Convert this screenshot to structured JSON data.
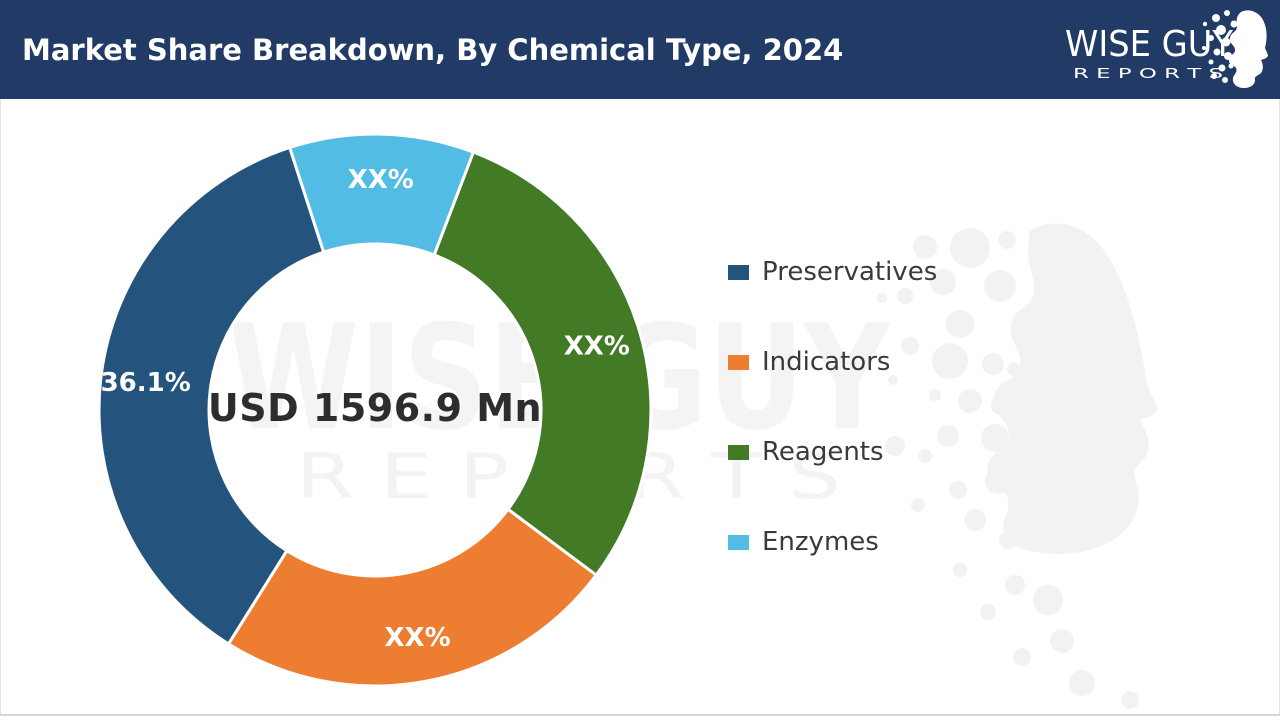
{
  "header": {
    "title": "Market Share Breakdown, By Chemical Type, 2024",
    "logo": {
      "brand": "WISE GUY",
      "tagline": "R E P O R T S"
    }
  },
  "watermark": {
    "line1": "WISE GUY",
    "line2": "R E P O R T S"
  },
  "chart_data": {
    "type": "pie",
    "subtype": "donut",
    "title": "Market Share Breakdown, By Chemical Type, 2024",
    "center_label": "USD 1596.9 Mn",
    "start_angle_deg": 108,
    "direction": "counterclockwise",
    "legend_position": "right",
    "segments": [
      {
        "name": "Preservatives",
        "display_label": "36.1%",
        "value_pct": 36.1,
        "color": "#24547d"
      },
      {
        "name": "Indicators",
        "display_label": "XX%",
        "value_pct": 23.7,
        "color": "#ed7d31"
      },
      {
        "name": "Reagents",
        "display_label": "XX%",
        "value_pct": 29.4,
        "color": "#437a26"
      },
      {
        "name": "Enzymes",
        "display_label": "XX%",
        "value_pct": 10.8,
        "color": "#52bce4"
      }
    ],
    "note": "Only the Preservatives share is labeled numerically (36.1%); other slice labels are masked as XX% in the image, value_pct for those slices estimated from arc angles."
  },
  "colors": {
    "header_bg": "#213a66",
    "title_text": "#ffffff",
    "legend_text": "#3a3a3a",
    "center_text": "#2d2d2d",
    "slice_label_text": "#ffffff",
    "watermark": "#f2f2f2",
    "border": "#d6d6d6"
  }
}
